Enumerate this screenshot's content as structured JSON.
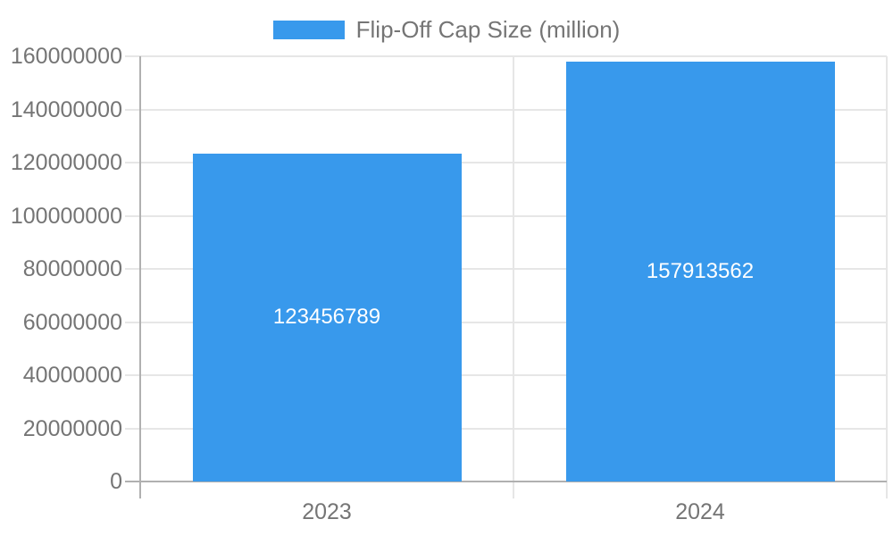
{
  "chart_data": {
    "type": "bar",
    "title": "Flip-Off Cap Size (million)",
    "categories": [
      "2023",
      "2024"
    ],
    "series": [
      {
        "name": "Flip-Off Cap Size (million)",
        "values": [
          123456789,
          157913562
        ]
      }
    ],
    "bar_value_labels": [
      "123456789",
      "157913562"
    ],
    "xlabel": "",
    "ylabel": "",
    "ylim": [
      0,
      160000000
    ],
    "ytick_step": 20000000,
    "ytick_labels": [
      "0",
      "20000000",
      "40000000",
      "60000000",
      "80000000",
      "100000000",
      "120000000",
      "140000000",
      "160000000"
    ],
    "grid": true,
    "legend_position": "top-center",
    "colors": {
      "bar": "#3899EC",
      "gridline": "#e6e6e6",
      "axis_line": "#b0b0b0",
      "tick_text": "#757575",
      "bar_label_text": "#ffffff",
      "background": "#ffffff"
    }
  }
}
